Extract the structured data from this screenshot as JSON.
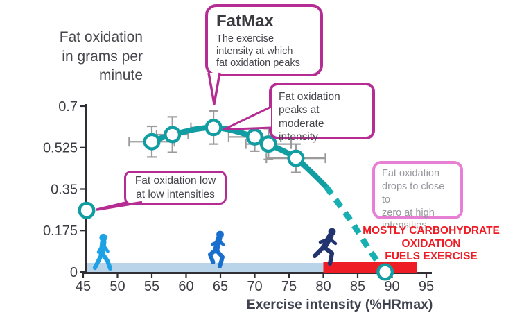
{
  "colors": {
    "teal": "#129da2",
    "teal_dash": "#17afb1",
    "error_bar": "#9b9b9b",
    "magenta": "#b52d93",
    "pink": "#e77fd4",
    "red": "#ee1c24",
    "fat_zone": "#b9d3e8",
    "axis": "#2e2e34",
    "walker": "#1ea2e6",
    "jogger": "#196fce",
    "sprinter": "#22346f",
    "text_dark": "#45454c",
    "text_gray": "#96969c"
  },
  "chart_data": {
    "type": "line",
    "title": "",
    "xlabel": "Exercise intensity (%HRmax)",
    "ylabel": "Fat oxidation in grams per minute",
    "ylabel_lines": "Fat oxidation\nin grams per\nminute",
    "xlim": [
      45,
      95
    ],
    "ylim": [
      0,
      0.7
    ],
    "x_ticks": [
      45,
      50,
      55,
      60,
      65,
      70,
      75,
      80,
      85,
      90,
      95
    ],
    "y_ticks": [
      0,
      0.175,
      0.35,
      0.525,
      0.7
    ],
    "grid": false,
    "legend": false,
    "series": [
      {
        "name": "fat-oxidation-mean-with-error-bars",
        "points": [
          {
            "x": 55,
            "y": 0.55,
            "ex": 3.3,
            "ey": 0.065
          },
          {
            "x": 58,
            "y": 0.58,
            "ex": 2.3,
            "ey": 0.075
          },
          {
            "x": 64,
            "y": 0.61,
            "ex": 3.3,
            "ey": 0.07
          },
          {
            "x": 70,
            "y": 0.57,
            "ex": 3.8,
            "ey": 0.06
          },
          {
            "x": 72,
            "y": 0.54,
            "ex": 3.3,
            "ey": 0.065
          },
          {
            "x": 76,
            "y": 0.48,
            "ex": 4.3,
            "ey": 0.06
          }
        ]
      }
    ],
    "low_intensity_point": {
      "x": 45.5,
      "y": 0.26
    },
    "high_intensity_point": {
      "x": 89,
      "y": 0.0
    },
    "solid_extension": [
      80.4,
      0.36
    ],
    "dashed_segment": [
      [
        80.4,
        0.36
      ],
      [
        83.8,
        0.225
      ],
      [
        86.8,
        0.09
      ],
      [
        89,
        0.0
      ]
    ],
    "zones": [
      {
        "kind": "fat",
        "from": 45,
        "to": 80
      },
      {
        "kind": "carb",
        "from": 80,
        "to": 93.6
      }
    ]
  },
  "annotations": {
    "fatmax": {
      "title": "FatMax",
      "body": "The exercise\nintensity at which\nfat oxidation peaks"
    },
    "peak": {
      "text": "Fat oxidation\npeaks at moderate\nintensity"
    },
    "low": {
      "text": "Fat oxidation low\nat low intensities"
    },
    "drops": {
      "text": "Fat oxidation\ndrops to close to\nzero at high\nintensities"
    },
    "carb": {
      "text": "MOSTLY CARBOHYDRATE\nOXIDATION\nFUELS EXERCISE"
    }
  },
  "icons": {
    "walker": "walking-person-icon",
    "jogger": "running-person-icon",
    "sprinter": "sprinting-person-icon"
  }
}
